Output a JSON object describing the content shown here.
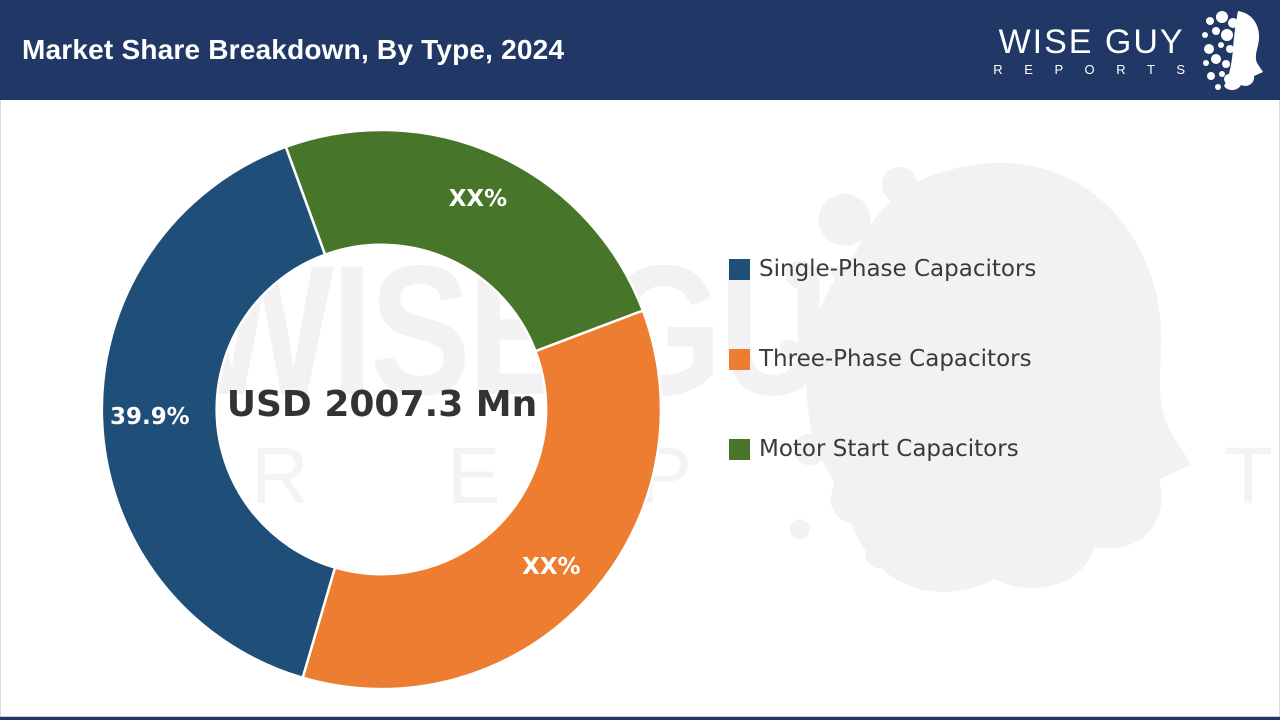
{
  "header": {
    "title": "Market Share Breakdown, By Type, 2024",
    "logo": {
      "line1": "WISE GUY",
      "line2": "R E P O R T S"
    }
  },
  "watermark": {
    "line1": "WISE GUY",
    "line2": "R E P O R T S"
  },
  "chart_data": {
    "type": "donut",
    "title": "Market Share Breakdown, By Type, 2024",
    "center_label": "USD 2007.3 Mn",
    "rotation_deg": -20,
    "inner_radius_ratio": 0.59,
    "slices": [
      {
        "name": "Motor Start Capacitors",
        "display_label": "XX%",
        "percent_est": 24.8,
        "color": "#47762A"
      },
      {
        "name": "Three-Phase Capacitors",
        "display_label": "XX%",
        "percent_est": 35.3,
        "color": "#ED7D31"
      },
      {
        "name": "Single-Phase Capacitors",
        "display_label": "39.9%",
        "percent_est": 39.9,
        "color": "#1F4E79"
      }
    ],
    "legend": [
      {
        "label": "Single-Phase Capacitors",
        "color": "#1F4E79"
      },
      {
        "label": "Three-Phase Capacitors",
        "color": "#ED7D31"
      },
      {
        "label": "Motor Start Capacitors",
        "color": "#47762A"
      }
    ],
    "legend_position": "right"
  },
  "colors": {
    "header_bg": "#213866",
    "footer_bg": "#213866",
    "watermark": "#F2F2F4",
    "center_text": "#333333",
    "legend_text": "#3A3A3A",
    "slice_label_text": "#FFFFFF",
    "gap_stroke": "#FFFFFF"
  }
}
